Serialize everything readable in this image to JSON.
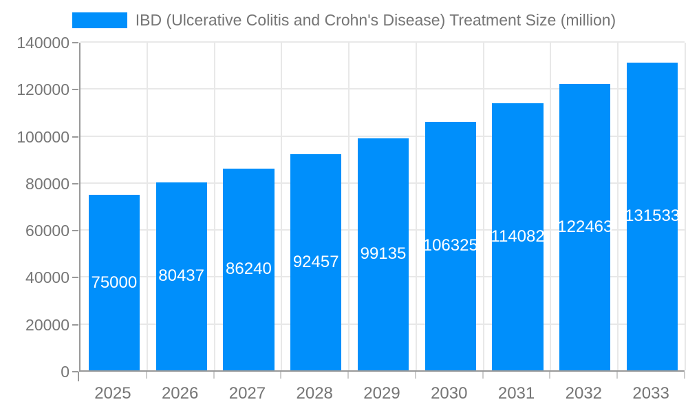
{
  "chart_data": {
    "type": "bar",
    "title": "",
    "xlabel": "",
    "ylabel": "",
    "categories": [
      "2025",
      "2026",
      "2027",
      "2028",
      "2029",
      "2030",
      "2031",
      "2032",
      "2033"
    ],
    "series": [
      {
        "name": "IBD (Ulcerative Colitis and Crohn's Disease) Treatment Size (million)",
        "values": [
          75000,
          80437,
          86240,
          92457,
          99135,
          106325,
          114082,
          122463,
          131533
        ]
      }
    ],
    "ylim": [
      0,
      140000
    ],
    "ytick_step": 20000,
    "yticks": [
      0,
      20000,
      40000,
      60000,
      80000,
      100000,
      120000,
      140000
    ],
    "legend_position": "top",
    "grid": {
      "horizontal": true,
      "vertical": true
    },
    "colors": {
      "bar": "#008FFB",
      "value_label": "#FFFFFF",
      "axis_text": "#757575",
      "legend_text": "#757575",
      "gridline": "#E8E8E8",
      "axis_line": "#999999",
      "category_tick": "#CCCCCC"
    }
  }
}
